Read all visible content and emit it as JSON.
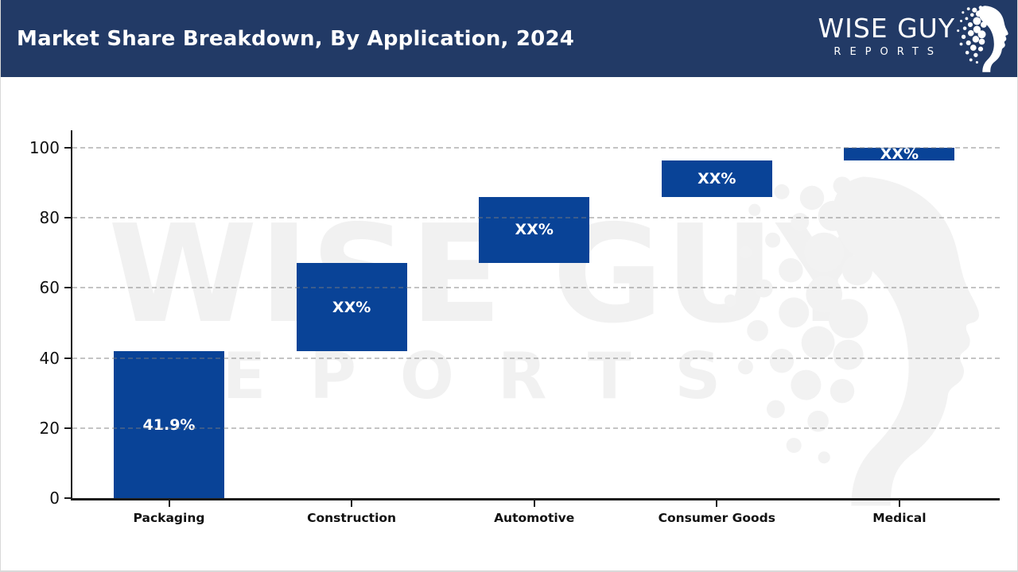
{
  "header": {
    "title": "Market Share Breakdown, By Application, 2024",
    "bg_color": "#223a66",
    "logo": {
      "line1": "WISE GUY",
      "line2": "REPORTS"
    }
  },
  "watermark": {
    "line1": "WISE GUY",
    "line2": "REPORTS"
  },
  "chart_data": {
    "type": "bar",
    "subtype": "waterfall",
    "title": "Market Share Breakdown, By Application, 2024",
    "xlabel": "",
    "ylabel": "",
    "categories": [
      "Packaging",
      "Construction",
      "Automotive",
      "Consumer Goods",
      "Medical"
    ],
    "segments": [
      {
        "category": "Packaging",
        "start": 0,
        "end": 41.9,
        "value": 41.9,
        "label": "41.9%"
      },
      {
        "category": "Construction",
        "start": 41.9,
        "end": 67.1,
        "value": 25.2,
        "label": "XX%"
      },
      {
        "category": "Automotive",
        "start": 67.1,
        "end": 86.0,
        "value": 18.9,
        "label": "XX%"
      },
      {
        "category": "Consumer Goods",
        "start": 86.0,
        "end": 96.4,
        "value": 10.4,
        "label": "XX%"
      },
      {
        "category": "Medical",
        "start": 96.4,
        "end": 100.0,
        "value": 3.6,
        "label": "XX%"
      }
    ],
    "yticks": [
      0,
      20,
      40,
      60,
      80,
      100
    ],
    "ylim": [
      0,
      105
    ],
    "grid": true,
    "gridline_style": "dashed",
    "bar_color": "#094397",
    "bar_label_color": "#ffffff",
    "axis_color": "#1c1c1c",
    "legend": null
  }
}
